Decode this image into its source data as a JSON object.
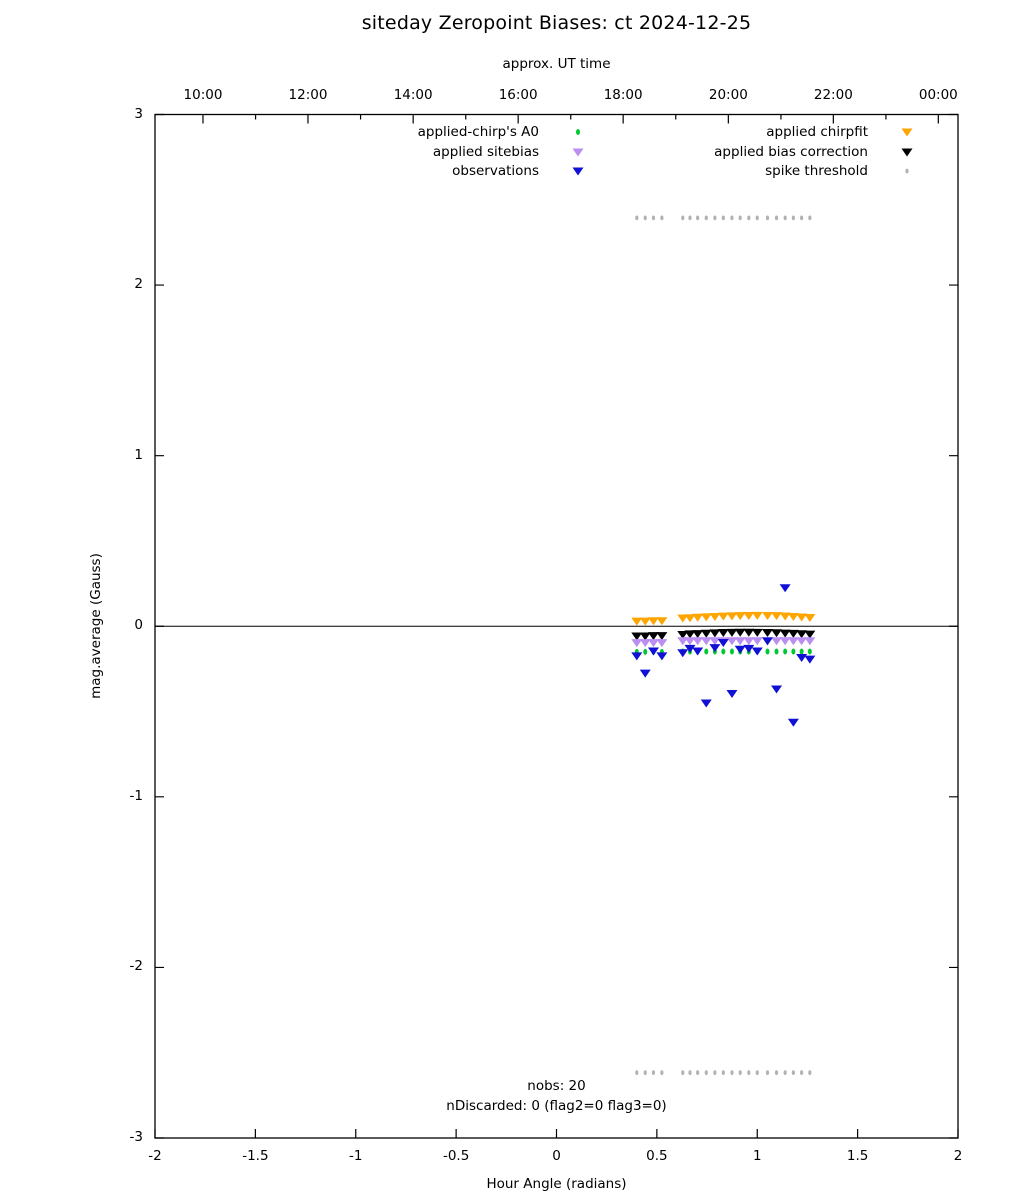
{
  "chart_data": {
    "type": "scatter",
    "title": "siteday Zeropoint Biases:  ct  2024-12-25",
    "xlabel": "Hour Angle (radians)",
    "ylabel": "mag.average (Gauss)",
    "x2label": "approx. UT time",
    "xlim": [
      -2,
      2
    ],
    "ylim": [
      -3,
      3
    ],
    "grid": false,
    "legend_position": "top-inside-two-columns",
    "x_ticks": [
      {
        "v": -2,
        "label": "-2"
      },
      {
        "v": -1.5,
        "label": "-1.5"
      },
      {
        "v": -1,
        "label": "-1"
      },
      {
        "v": -0.5,
        "label": "-0.5"
      },
      {
        "v": 0,
        "label": "0"
      },
      {
        "v": 0.5,
        "label": "0.5"
      },
      {
        "v": 1,
        "label": "1"
      },
      {
        "v": 1.5,
        "label": "1.5"
      },
      {
        "v": 2,
        "label": "2"
      }
    ],
    "y_ticks": [
      {
        "v": 3,
        "label": "3"
      },
      {
        "v": 2,
        "label": "2"
      },
      {
        "v": 1,
        "label": "1"
      },
      {
        "v": 0,
        "label": "0"
      },
      {
        "v": -1,
        "label": "-1"
      },
      {
        "v": -2,
        "label": "-2"
      },
      {
        "v": -3,
        "label": "-3"
      }
    ],
    "x2_ticks": [
      {
        "v": -1.761,
        "label": "10:00"
      },
      {
        "v": -1.238,
        "label": "12:00"
      },
      {
        "v": -0.714,
        "label": "14:00"
      },
      {
        "v": -0.191,
        "label": "16:00"
      },
      {
        "v": 0.332,
        "label": "18:00"
      },
      {
        "v": 0.856,
        "label": "20:00"
      },
      {
        "v": 1.379,
        "label": "22:00"
      },
      {
        "v": 1.902,
        "label": "00:00"
      }
    ],
    "x2_minor_ticks": [
      -1.499,
      -0.976,
      -0.452,
      0.071,
      0.594,
      1.118,
      1.641
    ],
    "x": [
      0.4,
      0.442,
      0.483,
      0.525,
      0.629,
      0.665,
      0.703,
      0.746,
      0.789,
      0.831,
      0.874,
      0.915,
      0.958,
      1.0,
      1.051,
      1.096,
      1.139,
      1.18,
      1.221,
      1.262
    ],
    "series": [
      {
        "name": "applied-chirp's A0",
        "marker": "fdot",
        "color": "#00c832",
        "y": [
          -0.15,
          -0.15,
          -0.15,
          -0.15,
          -0.148,
          -0.148,
          -0.148,
          -0.148,
          -0.148,
          -0.148,
          -0.148,
          -0.148,
          -0.148,
          -0.148,
          -0.148,
          -0.148,
          -0.148,
          -0.148,
          -0.148,
          -0.148
        ]
      },
      {
        "name": "applied sitebias",
        "marker": "tri",
        "color": "#bb8ef2",
        "y": [
          -0.096,
          -0.096,
          -0.096,
          -0.096,
          -0.085,
          -0.085,
          -0.085,
          -0.085,
          -0.085,
          -0.085,
          -0.085,
          -0.085,
          -0.085,
          -0.085,
          -0.085,
          -0.085,
          -0.085,
          -0.085,
          -0.085,
          -0.085
        ]
      },
      {
        "name": "observations",
        "marker": "tri",
        "color": "#1111d6",
        "y": [
          -0.174,
          -0.275,
          -0.145,
          -0.174,
          -0.155,
          -0.13,
          -0.145,
          -0.45,
          -0.125,
          -0.095,
          -0.394,
          -0.135,
          -0.13,
          -0.145,
          -0.086,
          -0.368,
          0.226,
          -0.563,
          -0.183,
          -0.193
        ]
      },
      {
        "name": "applied chirpfit",
        "marker": "tri",
        "color": "#ffa500",
        "y": [
          0.03,
          0.03,
          0.032,
          0.032,
          0.048,
          0.05,
          0.053,
          0.055,
          0.057,
          0.059,
          0.061,
          0.062,
          0.063,
          0.064,
          0.063,
          0.062,
          0.06,
          0.057,
          0.054,
          0.051
        ]
      },
      {
        "name": "applied bias correction",
        "marker": "tri",
        "color": "#000000",
        "y": [
          -0.057,
          -0.057,
          -0.055,
          -0.055,
          -0.048,
          -0.045,
          -0.043,
          -0.041,
          -0.039,
          -0.037,
          -0.036,
          -0.035,
          -0.035,
          -0.036,
          -0.037,
          -0.038,
          -0.04,
          -0.042,
          -0.044,
          -0.046
        ]
      },
      {
        "name": "spike threshold",
        "marker": "sdot",
        "color": "#b2b2b2",
        "rows": [
          2.394,
          -2.617
        ]
      }
    ],
    "legend": {
      "left": [
        0,
        1,
        2
      ],
      "right": [
        3,
        4,
        5
      ]
    },
    "annotations": {
      "nobs": "nobs: 20",
      "ndiscarded": "nDiscarded: 0  (flag2=0  flag3=0)"
    }
  }
}
